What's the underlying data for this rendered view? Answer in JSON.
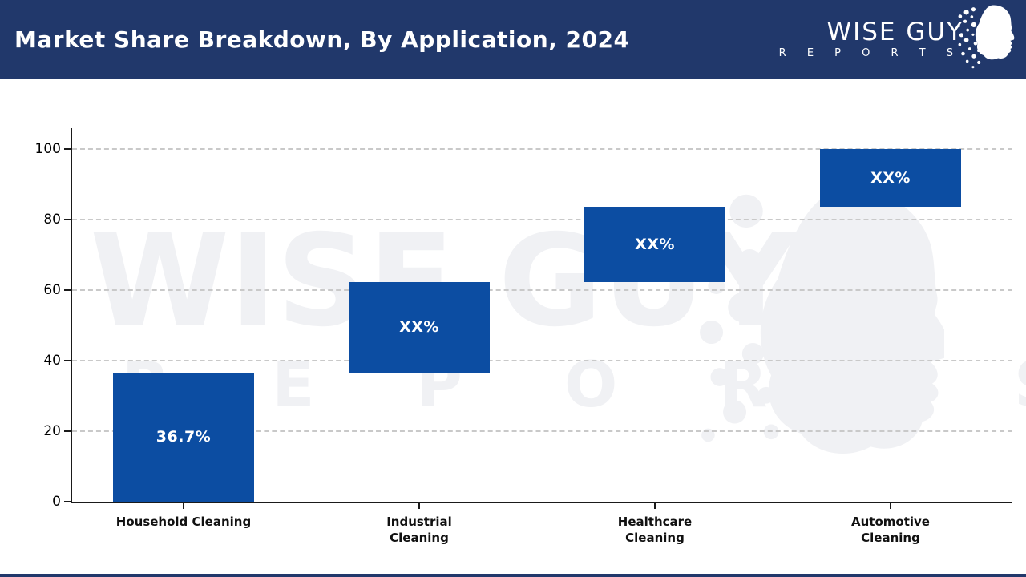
{
  "header": {
    "title": "Market Share Breakdown, By Application, 2024"
  },
  "logo": {
    "name_top": "WISE GUY",
    "name_bottom": "R E P O R T S"
  },
  "watermark": {
    "text_top": "WISE GUY",
    "text_bottom": "R E P O R T S"
  },
  "chart_data": {
    "type": "bar",
    "subtype": "waterfall",
    "title": "Market Share Breakdown, By Application, 2024",
    "categories": [
      "Household Cleaning",
      "Industrial Cleaning",
      "Healthcare Cleaning",
      "Automotive Cleaning"
    ],
    "tick_labels": [
      "Household Cleaning",
      "Industrial\nCleaning",
      "Healthcare\nCleaning",
      "Automotive\nCleaning"
    ],
    "bars": [
      {
        "category": "Household Cleaning",
        "from": 0,
        "to": 36.7,
        "label": "36.7%"
      },
      {
        "category": "Industrial Cleaning",
        "from": 36.7,
        "to": 62.2,
        "label": "XX%"
      },
      {
        "category": "Healthcare Cleaning",
        "from": 62.2,
        "to": 83.6,
        "label": "XX%"
      },
      {
        "category": "Automotive Cleaning",
        "from": 83.6,
        "to": 100,
        "label": "XX%"
      }
    ],
    "y_ticks": [
      0,
      20,
      40,
      60,
      80,
      100
    ],
    "ylim": [
      0,
      106
    ],
    "xlabel": "",
    "ylabel": "",
    "grid": "horizontal-dashed",
    "legend": "none",
    "bar_color": "#0c4da2",
    "bar_label_color": "#ffffff"
  },
  "colors": {
    "header_bg": "#21386b",
    "bar": "#0c4da2",
    "grid": "#c9c9c9",
    "axis": "#1a1a1a",
    "watermark": "#f0f1f4"
  }
}
